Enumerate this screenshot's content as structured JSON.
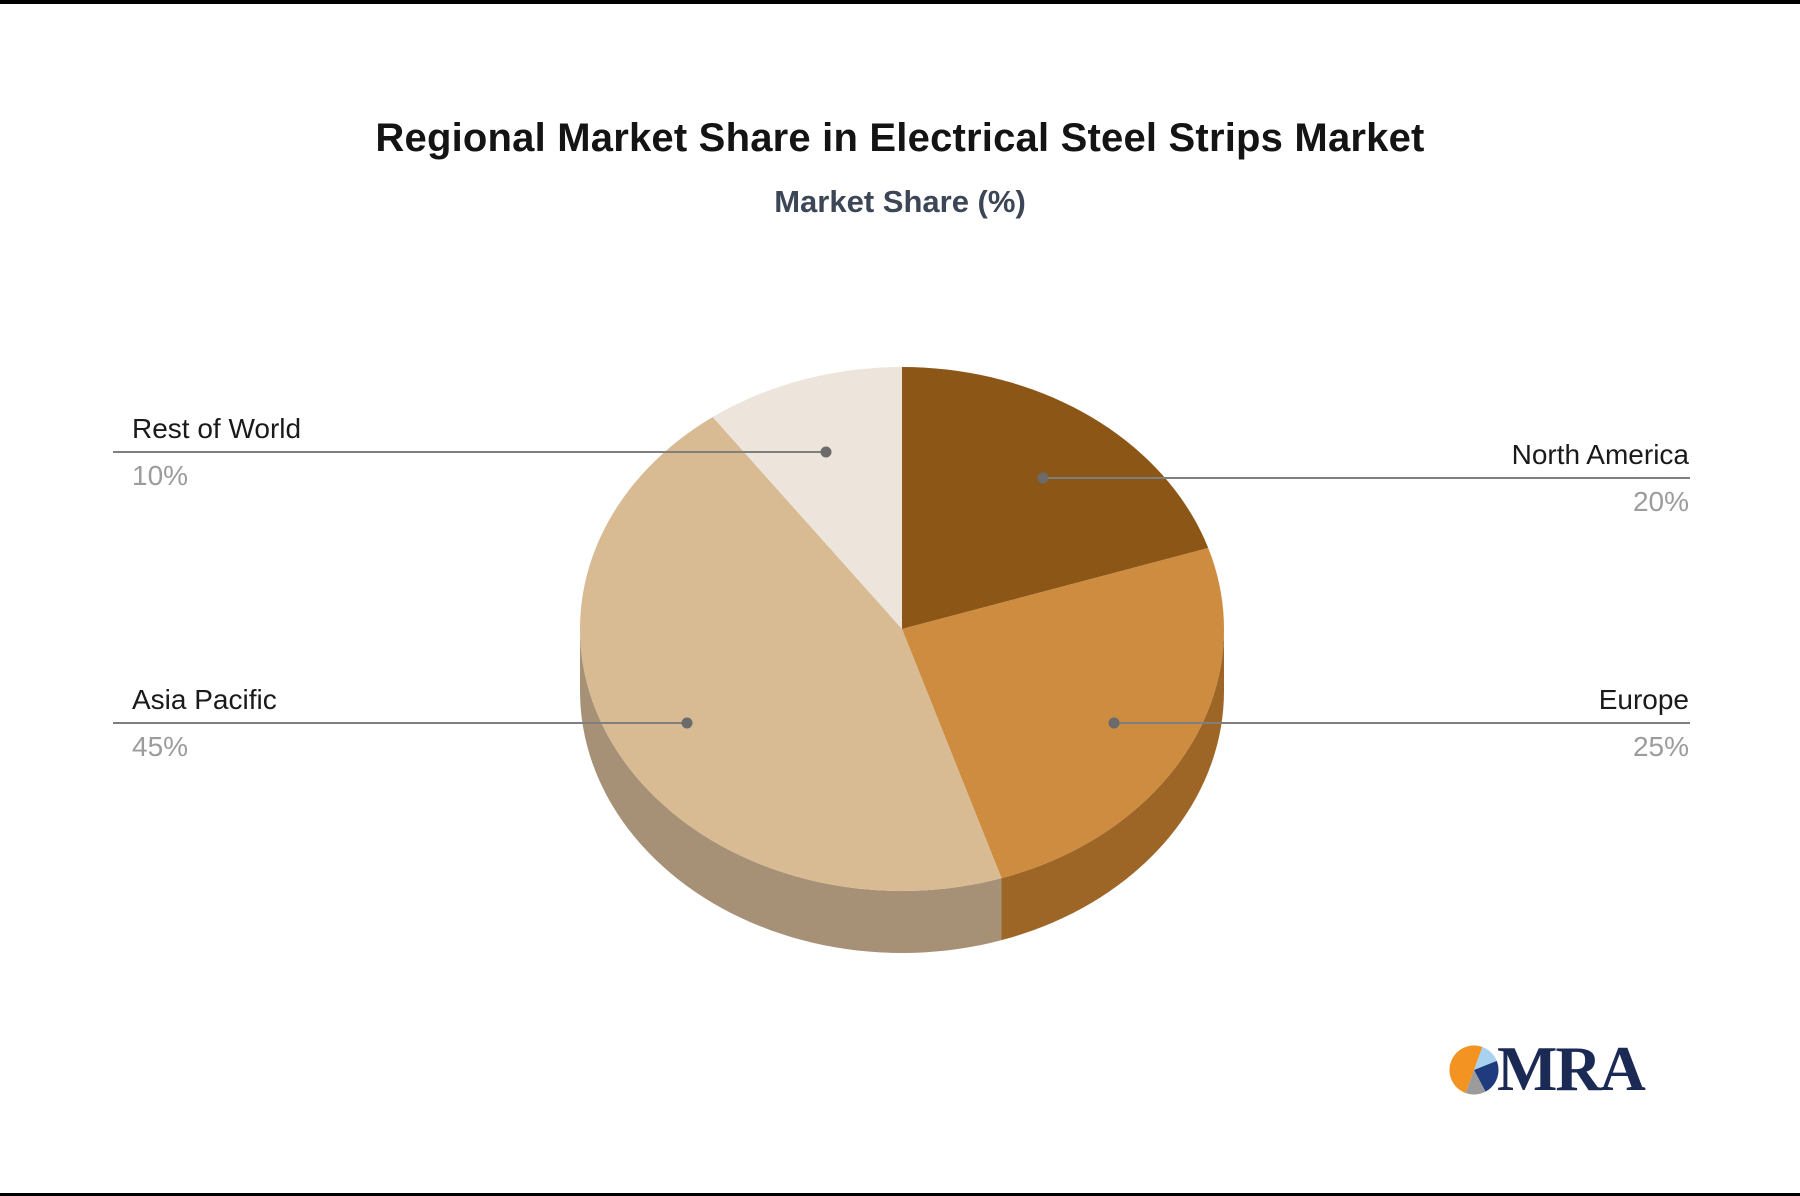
{
  "header": {
    "title": "Regional Market Share in Electrical Steel Strips Market",
    "subtitle": "Market Share (%)"
  },
  "chart_data": {
    "type": "pie",
    "style": "3d",
    "title": "Regional Market Share in Electrical Steel Strips Market",
    "subtitle": "Market Share (%)",
    "unit": "%",
    "start_angle_deg": 0,
    "direction": "clockwise",
    "total": 100,
    "slices": [
      {
        "label": "North America",
        "value": 20,
        "display": "20%",
        "color": "#8C5716",
        "label_side": "right"
      },
      {
        "label": "Europe",
        "value": 25,
        "display": "25%",
        "color": "#CD8C40",
        "side_color": "#9D6627",
        "label_side": "right"
      },
      {
        "label": "Asia Pacific",
        "value": 45,
        "display": "45%",
        "color": "#D8BA93",
        "side_color": "#A69176",
        "label_side": "left"
      },
      {
        "label": "Rest of World",
        "value": 10,
        "display": "10%",
        "color": "#EDE5DB",
        "label_side": "left"
      }
    ],
    "label_text_color": "#1a1a1a",
    "percent_text_color": "#9c9c9e",
    "leader_line_color": "#7f7f7f",
    "leader_dot_color": "#6b6b6b",
    "legend": "none",
    "grid": "off"
  },
  "logo": {
    "text": "MRA",
    "text_color": "#1b2a55",
    "icon": "pie-chart-icon",
    "icon_colors": {
      "orange": "#F39322",
      "light_blue": "#A9D2F0",
      "navy": "#1F3A7D",
      "gray": "#9B9B9B"
    }
  }
}
